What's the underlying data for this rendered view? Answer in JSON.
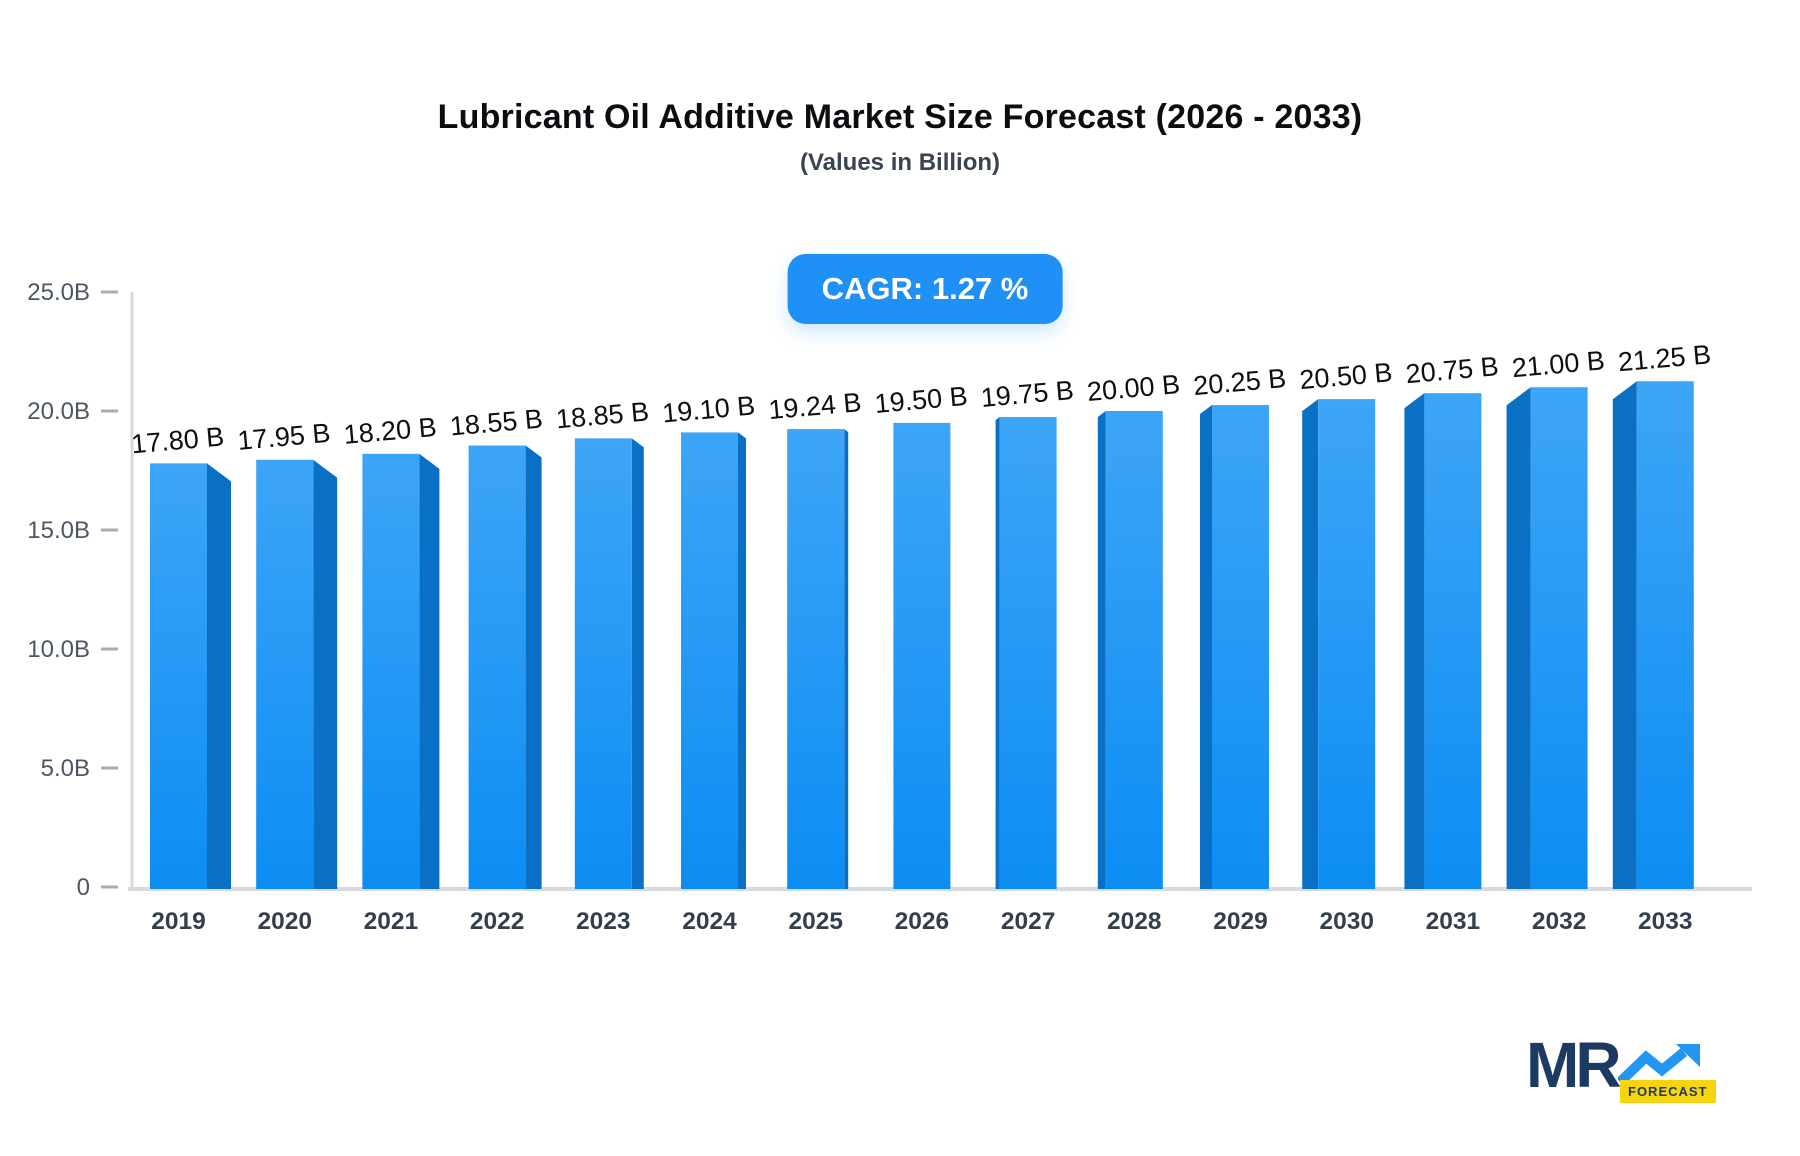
{
  "title": "Lubricant Oil Additive Market Size Forecast (2026 - 2033)",
  "subtitle": "(Values in Billion)",
  "badge": {
    "label": "CAGR: 1.27 %"
  },
  "logo": {
    "mr": "MR",
    "forecast": "FORECAST"
  },
  "chart_data": {
    "type": "bar",
    "title": "Lubricant Oil Additive Market Size Forecast (2026 - 2033)",
    "subtitle": "(Values in Billion)",
    "cagr": "1.27 %",
    "categories": [
      "2019",
      "2020",
      "2021",
      "2022",
      "2023",
      "2024",
      "2025",
      "2026",
      "2027",
      "2028",
      "2029",
      "2030",
      "2031",
      "2032",
      "2033"
    ],
    "values": [
      17.8,
      17.95,
      18.2,
      18.55,
      18.85,
      19.1,
      19.24,
      19.5,
      19.75,
      20.0,
      20.25,
      20.5,
      20.75,
      21.0,
      21.25
    ],
    "bar_labels": [
      "17.80 B",
      "17.95 B",
      "18.20 B",
      "18.55 B",
      "18.85 B",
      "19.10 B",
      "19.24 B",
      "19.50 B",
      "19.75 B",
      "20.00 B",
      "20.25 B",
      "20.50 B",
      "20.75 B",
      "21.00 B",
      "21.25 B"
    ],
    "y_ticks": [
      {
        "label": "25.0B",
        "value": 25
      },
      {
        "label": "20.0B",
        "value": 20
      },
      {
        "label": "15.0B",
        "value": 15
      },
      {
        "label": "10.0B",
        "value": 10
      },
      {
        "label": "5.0B",
        "value": 5
      },
      {
        "label": "0",
        "value": 0
      }
    ],
    "xlabel": "",
    "ylabel": "",
    "ylim": [
      0,
      25
    ],
    "grid": false,
    "legend": "none",
    "colors": {
      "bar_front_top": "#3da5f7",
      "bar_front_bottom": "#0c8df3",
      "bar_side": "#0a70c6",
      "axis_line": "#d7dade",
      "tick_mark": "#a7adb6",
      "tick_label": "#4d5663",
      "x_label": "#343e4d",
      "value_label": "#0c0e10",
      "badge_bg": "#1e90f6"
    }
  }
}
